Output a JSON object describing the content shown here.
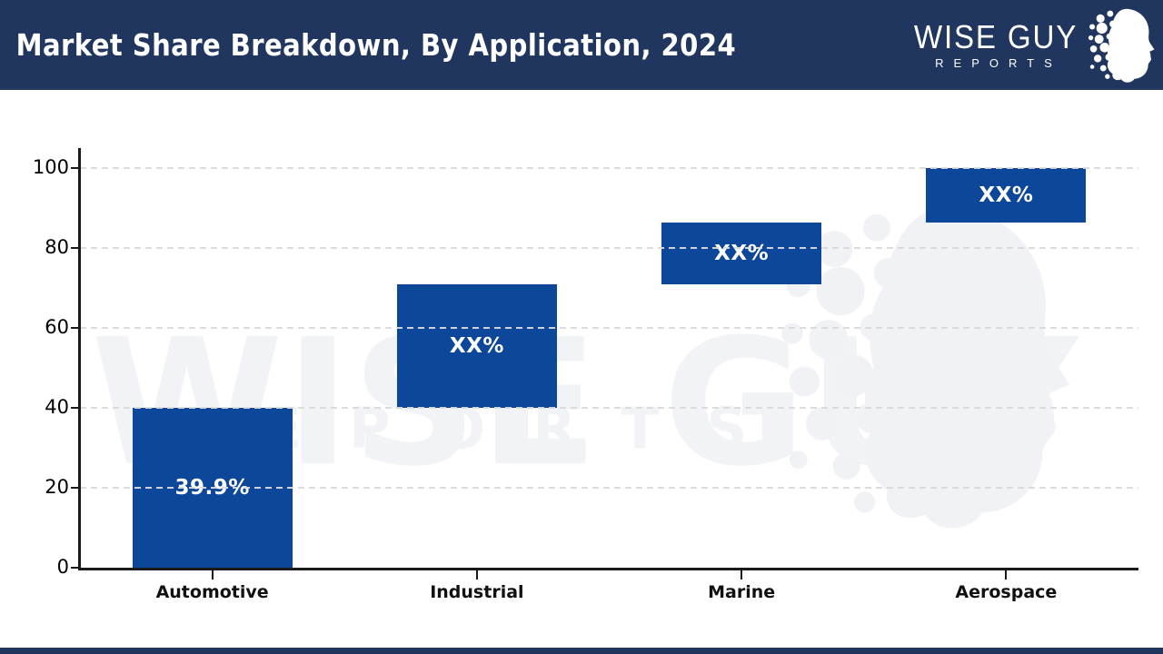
{
  "header": {
    "title": "Market Share Breakdown, By Application, 2024",
    "logo": {
      "line1": "WISE GUY",
      "line2": "REPORTS",
      "icon": "dotted-head-profile"
    }
  },
  "watermark": {
    "line1": "WISE GUY",
    "line2": "REPORTS",
    "icon": "dotted-head-profile"
  },
  "chart_data": {
    "type": "bar",
    "subtype": "waterfall",
    "title": "Market Share Breakdown, By Application, 2024",
    "categories": [
      "Automotive",
      "Industrial",
      "Marine",
      "Aerospace"
    ],
    "segments": [
      {
        "category": "Automotive",
        "start": 0,
        "end": 39.9,
        "label": "39.9%"
      },
      {
        "category": "Industrial",
        "start": 39.9,
        "end": 71,
        "label": "XX%"
      },
      {
        "category": "Marine",
        "start": 71,
        "end": 86.4,
        "label": "XX%"
      },
      {
        "category": "Aerospace",
        "start": 86.4,
        "end": 100,
        "label": "XX%"
      }
    ],
    "xlabel": "",
    "ylabel": "",
    "ylim": [
      0,
      100
    ],
    "yticks": [
      0,
      20,
      40,
      60,
      80,
      100
    ],
    "grid": "horizontal-dashed",
    "legend": "none",
    "bar_color": "#0c4799",
    "bar_label_color": "#ffffff"
  },
  "colors": {
    "header_bg": "#20365f",
    "footer_bg": "#20365f",
    "axis": "#1a1a1a",
    "grid": "#dadada",
    "watermark": "#f2f3f6"
  }
}
